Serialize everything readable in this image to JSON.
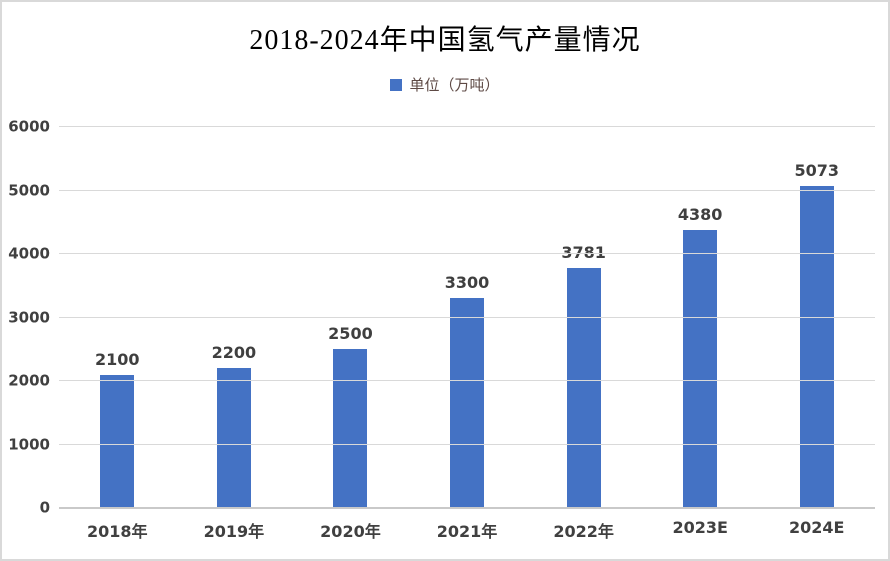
{
  "title": "2018-2024年中国氢气产量情况",
  "legend": {
    "label": "单位（万吨）",
    "swatch_color": "#4472c4",
    "text_color": "#5e4a45"
  },
  "chart_data": {
    "type": "bar",
    "title": "2018-2024年中国氢气产量情况",
    "categories": [
      "2018年",
      "2019年",
      "2020年",
      "2021年",
      "2022年",
      "2023E",
      "2024E"
    ],
    "values": [
      2100,
      2200,
      2500,
      3300,
      3781,
      4380,
      5073
    ],
    "series_name": "单位（万吨）",
    "xlabel": "",
    "ylabel": "",
    "ylim": [
      0,
      6000
    ],
    "ytick_step": 1000,
    "yticks": [
      0,
      1000,
      2000,
      3000,
      4000,
      5000,
      6000
    ],
    "grid": true,
    "legend_position": "top",
    "bar_color": "#4472c4",
    "gridline_color": "#d9d9d9",
    "axis_label_color": "#404040",
    "data_label_color": "#3f3f3f"
  }
}
